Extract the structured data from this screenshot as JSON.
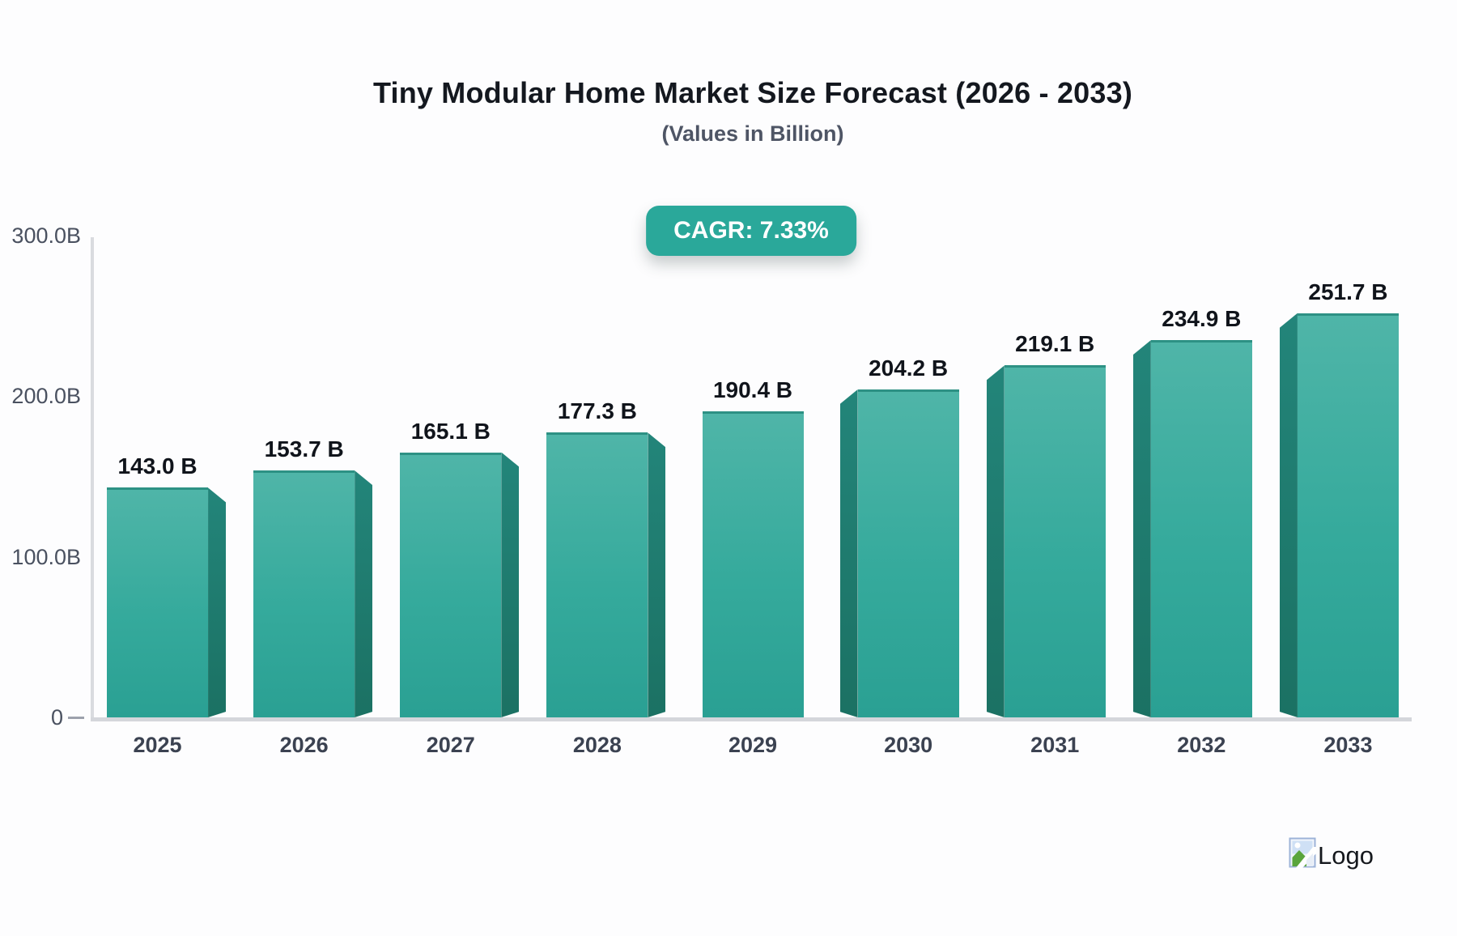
{
  "header": {
    "title": "Tiny Modular Home Market Size Forecast (2026 - 2033)",
    "subtitle": "(Values in Billion)",
    "cagr_badge": "CAGR: 7.33%"
  },
  "footer": {
    "logo_alt": "Logo"
  },
  "colors": {
    "accent": "#2aa89a",
    "bar_face_top": "#4fb5a8",
    "bar_face_bottom": "#2aa093",
    "bar_side": "#1e7a6d",
    "bar_top_edge": "#2d9184",
    "axis_line": "#d6d8dc",
    "axis_text": "#4a5160",
    "year_text": "#3b4251",
    "value_text": "#10141b",
    "badge_text": "#ffffff"
  },
  "chart_data": {
    "type": "bar",
    "title": "Tiny Modular Home Market Size Forecast (2026 - 2033)",
    "subtitle": "(Values in Billion)",
    "annotation": "CAGR: 7.33%",
    "categories": [
      "2025",
      "2026",
      "2027",
      "2028",
      "2029",
      "2030",
      "2031",
      "2032",
      "2033"
    ],
    "values": [
      143.0,
      153.7,
      165.1,
      177.3,
      190.4,
      204.2,
      219.1,
      234.9,
      251.7
    ],
    "value_labels": [
      "143.0 B",
      "153.7 B",
      "165.1 B",
      "177.3 B",
      "190.4 B",
      "204.2 B",
      "219.1 B",
      "234.9 B",
      "251.7 B"
    ],
    "y_ticks": [
      {
        "label": "300.0B",
        "value": 300
      },
      {
        "label": "200.0B",
        "value": 200
      },
      {
        "label": "100.0B",
        "value": 100
      },
      {
        "label": "0",
        "value": 0
      }
    ],
    "ylim": [
      0,
      300
    ],
    "xlabel": "",
    "ylabel": "",
    "grid": false,
    "legend": false,
    "bar_style": "3d-perspective-toward-center"
  }
}
